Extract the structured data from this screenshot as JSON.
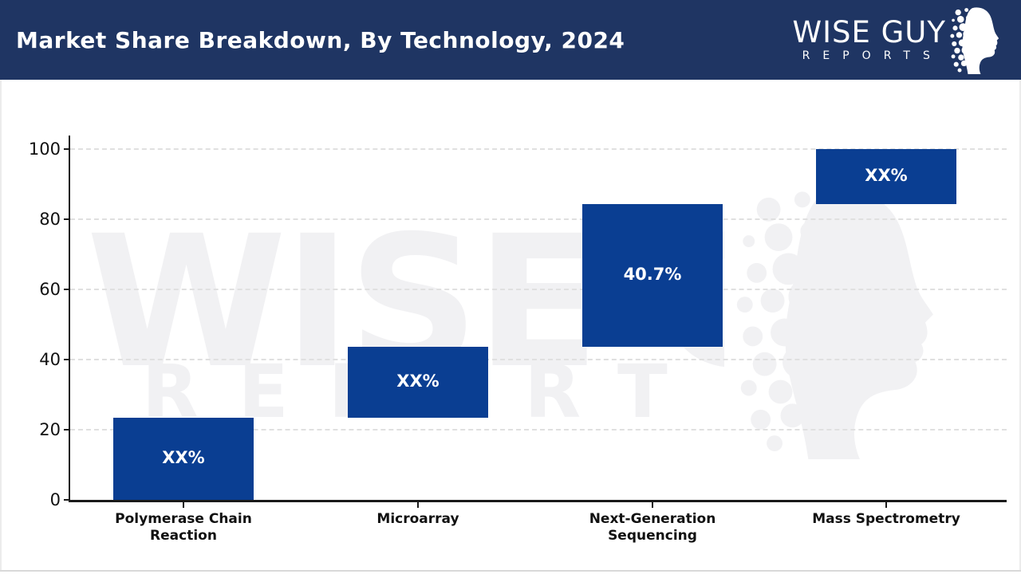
{
  "header": {
    "title": "Market Share Breakdown, By Technology, 2024",
    "bg_color": "#1f3563",
    "logo": {
      "line1": "WISE GUY",
      "line2": "REPORTS"
    }
  },
  "watermark": {
    "line1": "WISE GUY",
    "line2": "REPORTS"
  },
  "chart_data": {
    "type": "bar",
    "subtype": "waterfall",
    "title": "Market Share Breakdown, By Technology, 2024",
    "categories": [
      [
        "Polymerase Chain",
        "Reaction"
      ],
      [
        "Microarray"
      ],
      [
        "Next-Generation",
        "Sequencing"
      ],
      [
        "Mass Spectrometry"
      ]
    ],
    "segments": [
      {
        "category": "Polymerase Chain Reaction",
        "start": 0,
        "end": 23.3,
        "label": "XX%"
      },
      {
        "category": "Microarray",
        "start": 23.3,
        "end": 43.6,
        "label": "XX%"
      },
      {
        "category": "Next-Generation Sequencing",
        "start": 43.6,
        "end": 84.3,
        "label": "40.7%"
      },
      {
        "category": "Mass Spectrometry",
        "start": 84.3,
        "end": 100,
        "label": "XX%"
      }
    ],
    "ylim": [
      0,
      100
    ],
    "yticks": [
      0,
      20,
      40,
      60,
      80,
      100
    ],
    "grid": "horizontal-dashed",
    "bar_color": "#0a3e92",
    "bar_label_color": "#ffffff",
    "axis_color": "#1a1a1a",
    "legend": "none"
  }
}
